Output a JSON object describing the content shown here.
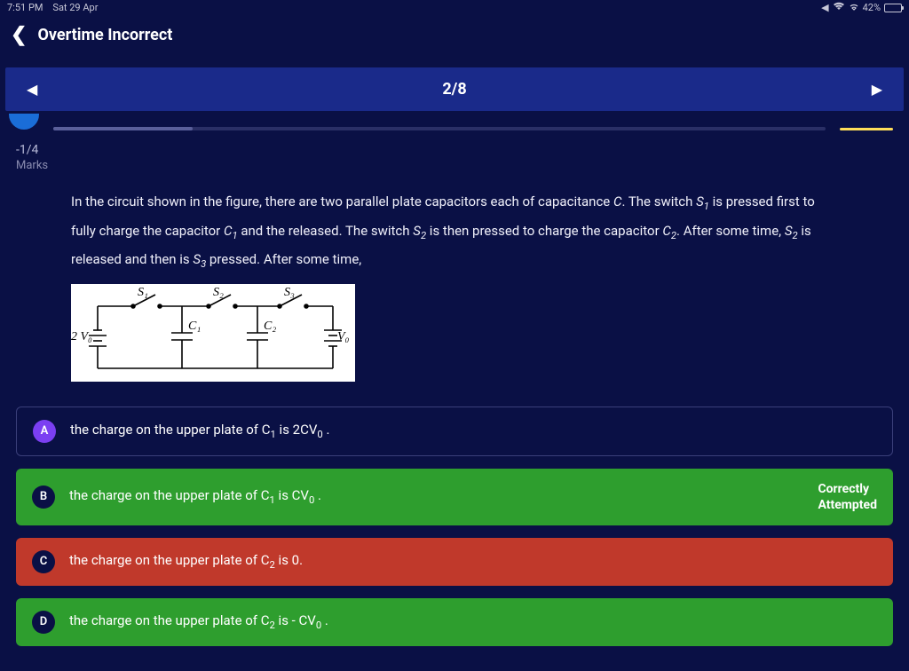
{
  "status_bar": {
    "time": "7:51 PM",
    "date": "Sat 29 Apr",
    "battery_pct": "42%"
  },
  "header": {
    "title": "Overtime Incorrect"
  },
  "nav": {
    "counter": "2/8"
  },
  "progress": {
    "fill_pct": 18
  },
  "marks": {
    "value": "-1/4",
    "label": "Marks"
  },
  "question": {
    "text_html": "In the circuit shown in the figure, there are two parallel plate capacitors each of capacitance <i>C</i>. The switch <i>S<sub>1</sub></i> is pressed first to fully charge the capacitor <i>C<sub>1</sub></i> and the released. The switch <i>S<sub>2</sub></i> is then pressed to charge the capacitor <i>C<sub>2</sub></i>. After some time, <i>S<sub>2</sub></i> is released and then is <i>S<sub>3</sub></i> pressed. After some time,"
  },
  "circuit": {
    "labels": {
      "s1": "S₁",
      "s2": "S₂",
      "s3": "S₃",
      "c1": "C₁",
      "c2": "C₂",
      "v_left": "2 V₀",
      "v_right": "V₀"
    }
  },
  "options": [
    {
      "letter": "A",
      "letter_style": "letter-purple",
      "row_style": "opt-default",
      "text_html": "the charge on the upper plate of C<sub>1</sub> is 2CV<sub>0</sub> .",
      "status": ""
    },
    {
      "letter": "B",
      "letter_style": "letter-dark",
      "row_style": "opt-green",
      "text_html": "the charge on the upper plate of C<sub>1</sub> is CV<sub>0</sub> .",
      "status": "Correctly\nAttempted"
    },
    {
      "letter": "C",
      "letter_style": "letter-dark",
      "row_style": "opt-red",
      "text_html": "the charge on the upper plate of C<sub>2</sub> is 0.",
      "status": ""
    },
    {
      "letter": "D",
      "letter_style": "letter-dark",
      "row_style": "opt-green",
      "text_html": "the charge on the upper plate of C<sub>2</sub> is - CV<sub>0</sub> .",
      "status": ""
    }
  ],
  "colors": {
    "bg": "#0a1045",
    "nav_bg": "#1a2a8a",
    "green": "#2e9e2e",
    "red": "#c0392b",
    "purple": "#7b3ff2",
    "accent_yellow": "#ffde59"
  }
}
